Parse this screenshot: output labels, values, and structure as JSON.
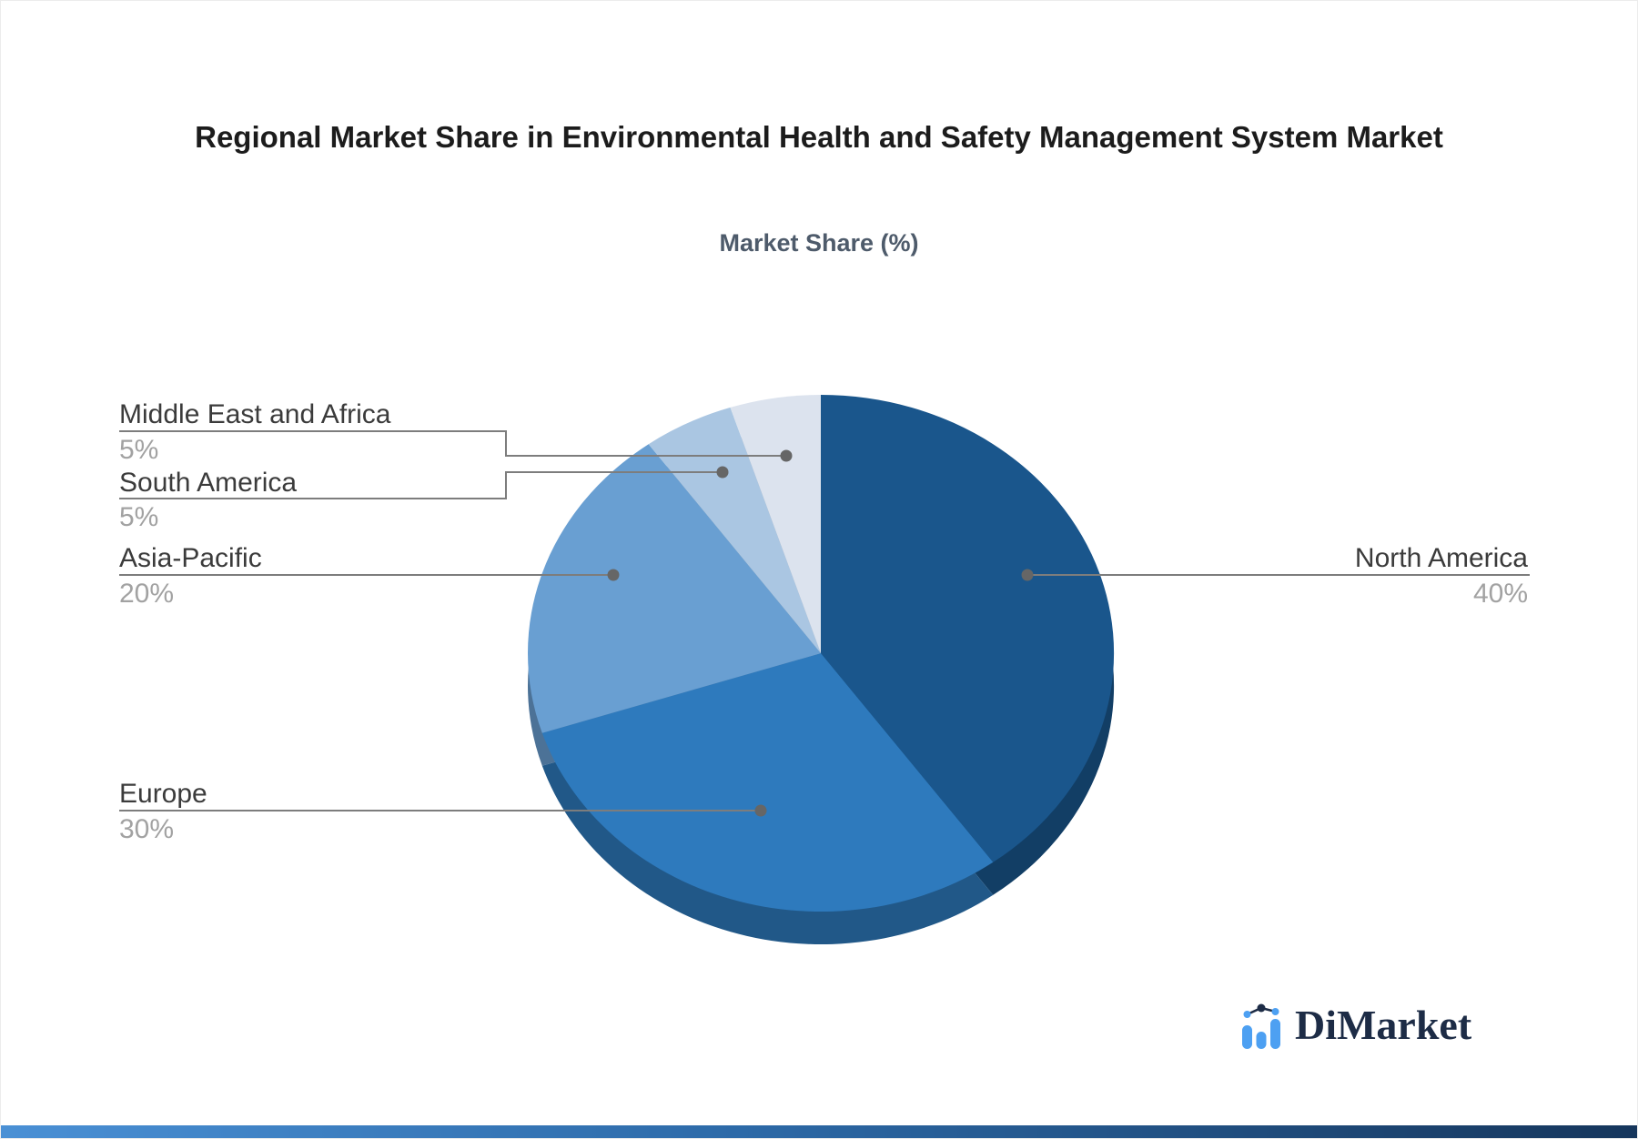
{
  "chart_data": {
    "type": "pie",
    "title": "Regional Market Share in Environmental Health and Safety Management System Market",
    "subtitle": "Market Share (%)",
    "unit": "%",
    "effect": "3d",
    "start_angle_deg": 0,
    "direction": "clockwise",
    "legend_position": "callout-labels",
    "slices": [
      {
        "label": "North America",
        "value": 40,
        "pct": "40%",
        "color": "#1A568C",
        "side_color": "#123E65",
        "callout_side": "right"
      },
      {
        "label": "Europe",
        "value": 30,
        "pct": "30%",
        "color": "#2E7ABD",
        "side_color": "#215888",
        "callout_side": "left"
      },
      {
        "label": "Asia-Pacific",
        "value": 20,
        "pct": "20%",
        "color": "#699FD2",
        "side_color": "#4C7297",
        "callout_side": "left"
      },
      {
        "label": "South America",
        "value": 5,
        "pct": "5%",
        "color": "#AAC6E2",
        "side_color": "#7A8FA3",
        "callout_side": "left"
      },
      {
        "label": "Middle East and Africa",
        "value": 5,
        "pct": "5%",
        "color": "#DCE3EE",
        "side_color": "#9EA4AD",
        "callout_side": "left"
      }
    ]
  },
  "colors": {
    "leader_line": "#7d7d7d",
    "leader_dot": "#666666",
    "title_text": "#1c1c1c",
    "subtitle_text": "#4e5b6b",
    "label_text": "#3b3b3b",
    "pct_text": "#a2a2a2",
    "footer_bar_gradient": [
      "#4a90d5",
      "#16365c"
    ]
  },
  "branding": {
    "logo_text": "DiMarket",
    "logo_text_color": "#1d2c46",
    "logo_bar_color": "#4da0f2"
  }
}
